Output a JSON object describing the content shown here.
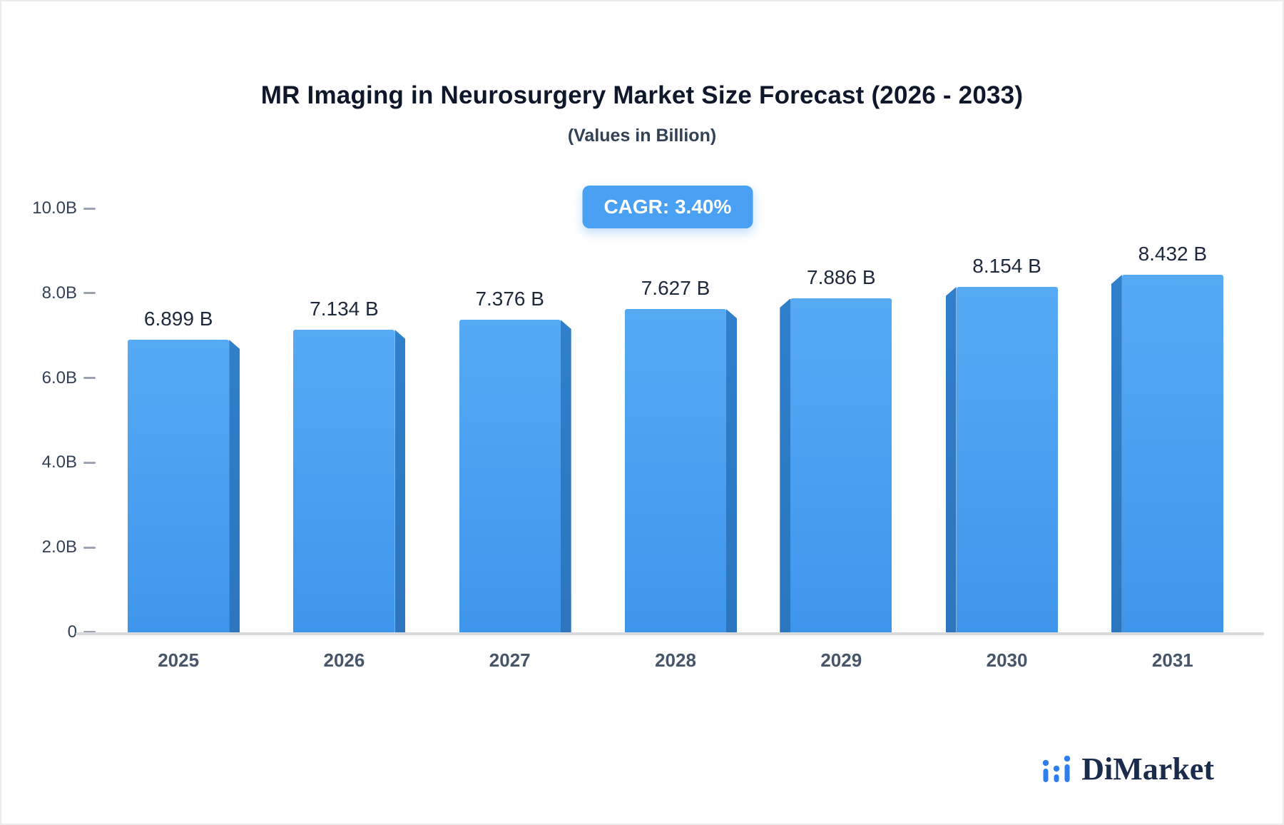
{
  "chart_data": {
    "type": "bar",
    "title": "MR Imaging in Neurosurgery Market Size Forecast (2026 - 2033)",
    "subtitle": "(Values in Billion)",
    "cagr_label": "CAGR: 3.40%",
    "categories": [
      "2025",
      "2026",
      "2027",
      "2028",
      "2029",
      "2030",
      "2031"
    ],
    "values": [
      6.899,
      7.134,
      7.376,
      7.627,
      7.886,
      8.154,
      8.432
    ],
    "value_labels": [
      "6.899 B",
      "7.134 B",
      "7.376 B",
      "7.627 B",
      "7.886 B",
      "8.154 B",
      "8.432 B"
    ],
    "xlabel": "",
    "ylabel": "",
    "ylim": [
      0,
      10
    ],
    "y_ticks": [
      "10.0B",
      "8.0B",
      "6.0B",
      "4.0B",
      "2.0B",
      "0"
    ],
    "grid": false,
    "legend": false,
    "bar_color": "#4AA2F2",
    "bar_side_color": "#2D7CC5",
    "badge_color": "#4AA0F2"
  },
  "branding": {
    "logo_text": "DiMarket",
    "logo_icon": "bar-chart-dots-icon",
    "logo_text_color": "#1a2b4c",
    "logo_icon_color": "#2E7EF0"
  }
}
